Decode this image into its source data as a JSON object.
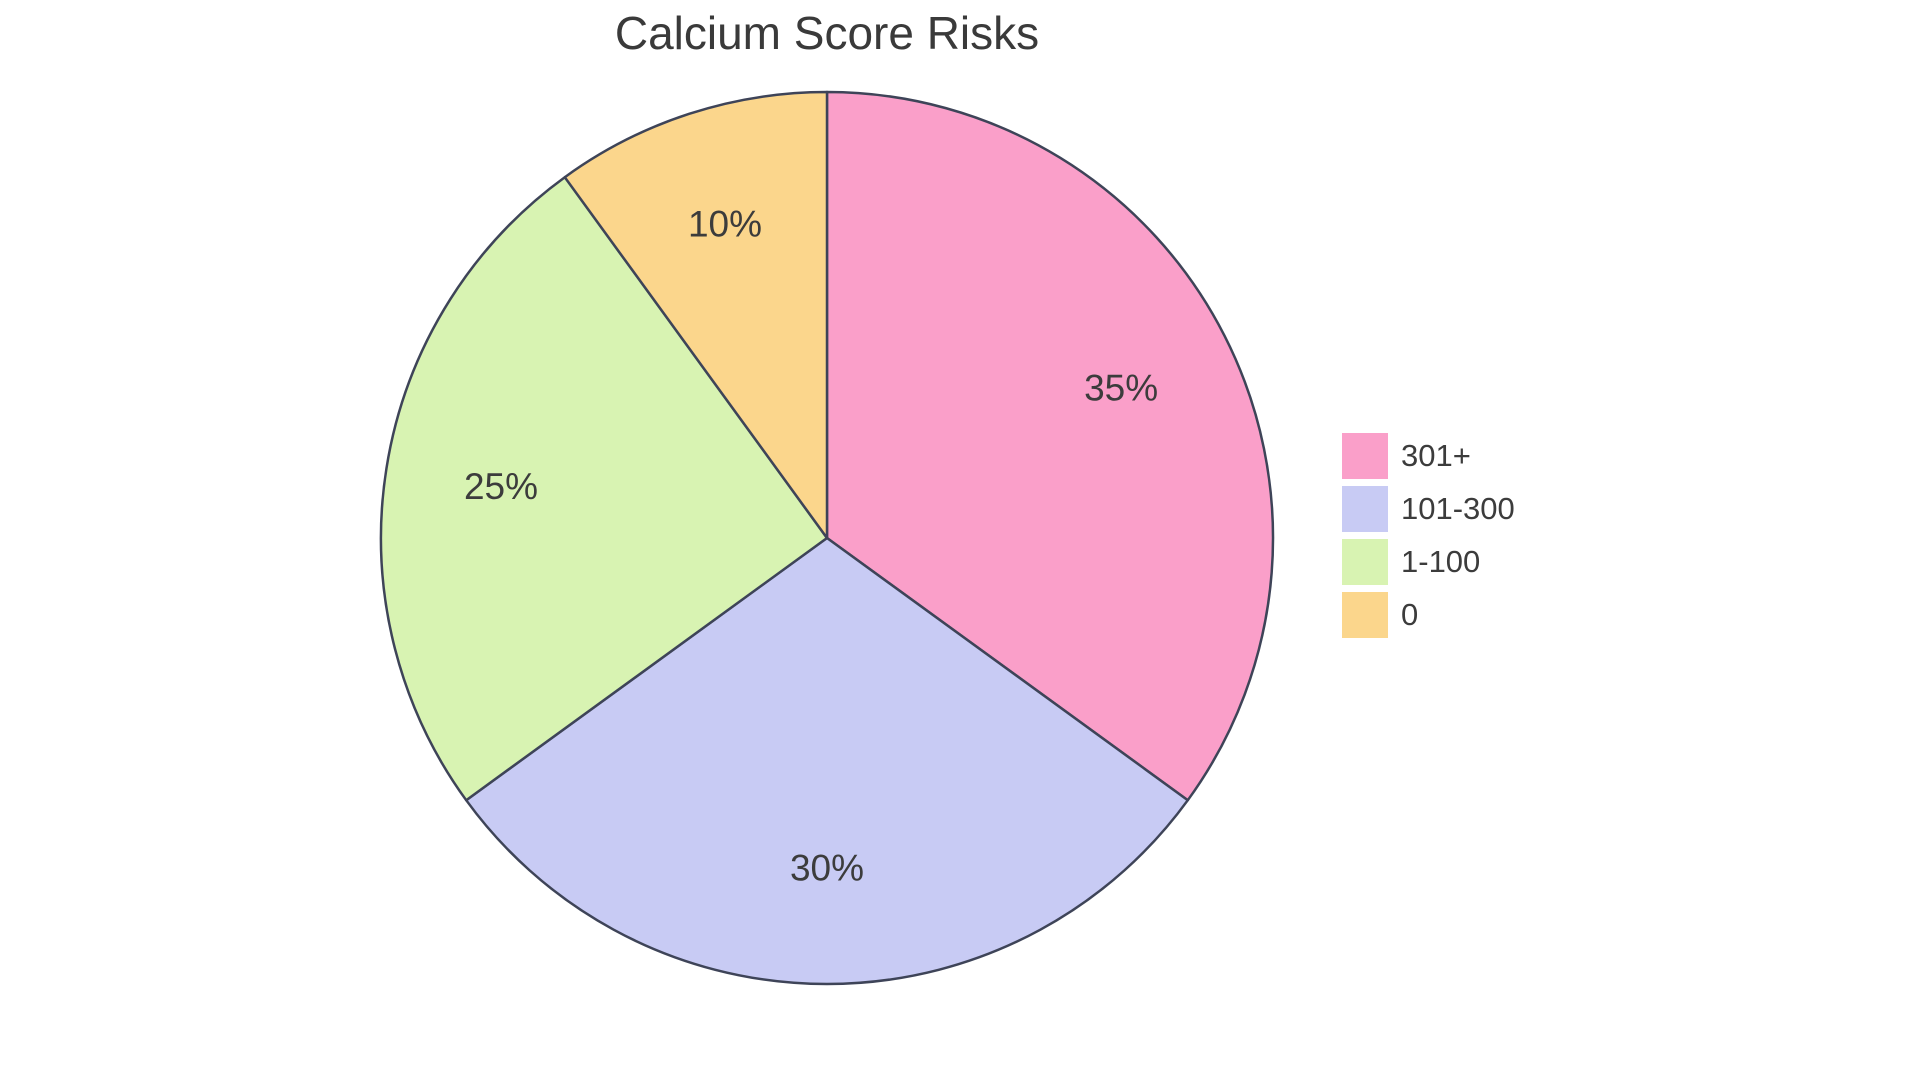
{
  "chart_data": {
    "type": "pie",
    "title": "Calcium Score Risks",
    "labels": [
      "301+",
      "101-300",
      "1-100",
      "0"
    ],
    "values": [
      35,
      30,
      25,
      10
    ],
    "value_labels": [
      "35%",
      "30%",
      "25%",
      "10%"
    ],
    "colors": [
      "#FA9FC9",
      "#C8CBF4",
      "#D8F3B2",
      "#FBD68C"
    ],
    "slice_border_color": "#3E4458",
    "label_color": "#3C3C3C",
    "title_color": "#3A3A3A",
    "background": "#FFFFFF",
    "start_angle_deg": 0,
    "direction": "clockwise",
    "legend_position": "right",
    "grid": "off"
  }
}
